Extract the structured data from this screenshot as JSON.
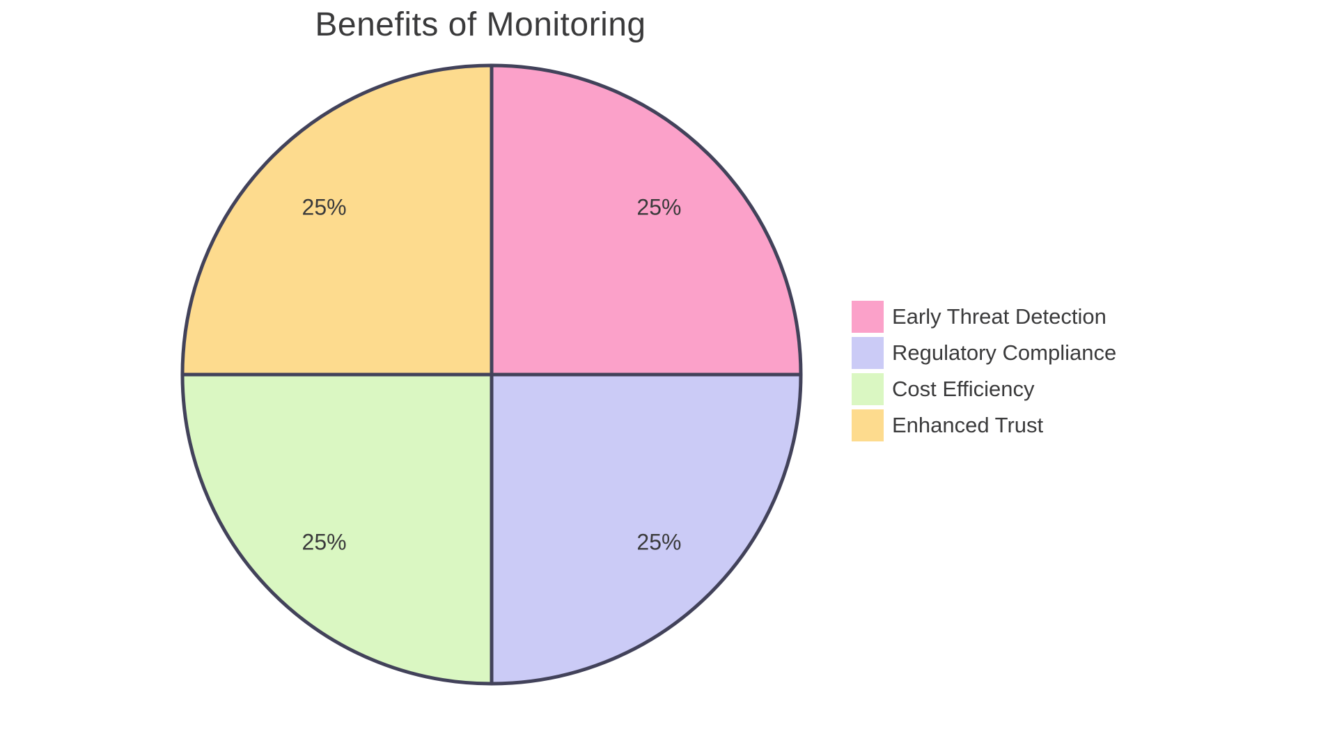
{
  "chart_data": {
    "type": "pie",
    "title": "Benefits of Monitoring",
    "labels": [
      "Early Threat Detection",
      "Regulatory Compliance",
      "Cost Efficiency",
      "Enhanced Trust"
    ],
    "values": [
      25,
      25,
      25,
      25
    ],
    "slice_labels": [
      "25%",
      "25%",
      "25%",
      "25%"
    ],
    "colors": [
      "#FBA1C9",
      "#CBCBF6",
      "#DAF7C2",
      "#FDDB8E"
    ],
    "border_color": "#42425A",
    "border_width": 5,
    "label_color": "#3a3a3b",
    "title_color": "#3a3a3b",
    "legend_position": "right",
    "start_angle_deg": 0,
    "clockwise": true,
    "background": "#ffffff"
  }
}
